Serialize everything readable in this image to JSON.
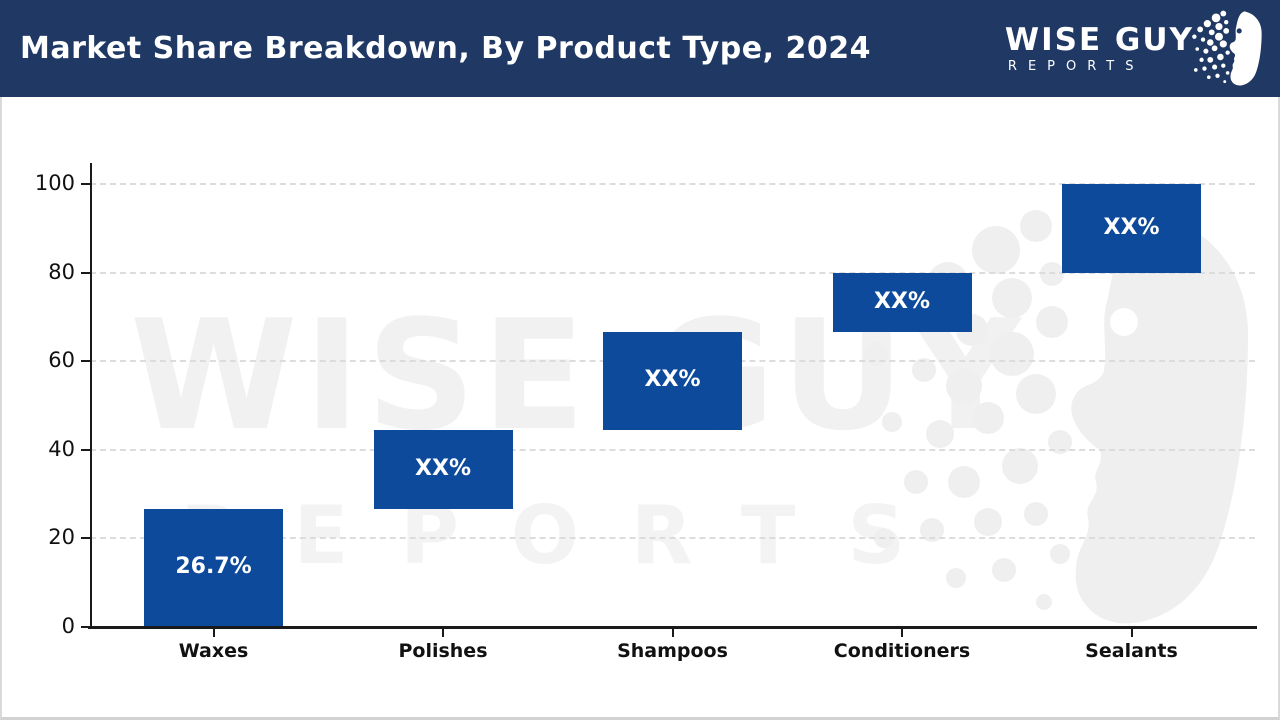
{
  "header": {
    "title": "Market Share Breakdown, By Product Type, 2024",
    "logo": {
      "line1": "WISE GUY",
      "line2": "REPORTS"
    },
    "bg_color": "#203864"
  },
  "watermark": {
    "line1": "WISE GUY",
    "line2": "REPORTS"
  },
  "chart_data": {
    "type": "bar",
    "subtype": "waterfall",
    "title": "Market Share Breakdown, By Product Type, 2024",
    "categories": [
      "Waxes",
      "Polishes",
      "Shampoos",
      "Conditioners",
      "Sealants"
    ],
    "bars": [
      {
        "category": "Waxes",
        "start": 0,
        "end": 26.7,
        "label": "26.7%"
      },
      {
        "category": "Polishes",
        "start": 26.7,
        "end": 44.4,
        "label": "XX%"
      },
      {
        "category": "Shampoos",
        "start": 44.4,
        "end": 66.5,
        "label": "XX%"
      },
      {
        "category": "Conditioners",
        "start": 66.5,
        "end": 79.9,
        "label": "XX%"
      },
      {
        "category": "Sealants",
        "start": 79.9,
        "end": 100,
        "label": "XX%"
      }
    ],
    "xlabel": "",
    "ylabel": "",
    "ylim": [
      0,
      100
    ],
    "yticks": [
      0,
      20,
      40,
      60,
      80,
      100
    ],
    "grid": true,
    "legend": false,
    "bar_color": "#0d4a9c",
    "bar_label_color": "#ffffff",
    "axis_color": "#1a1a1a",
    "grid_color": "#dcdcdc"
  }
}
